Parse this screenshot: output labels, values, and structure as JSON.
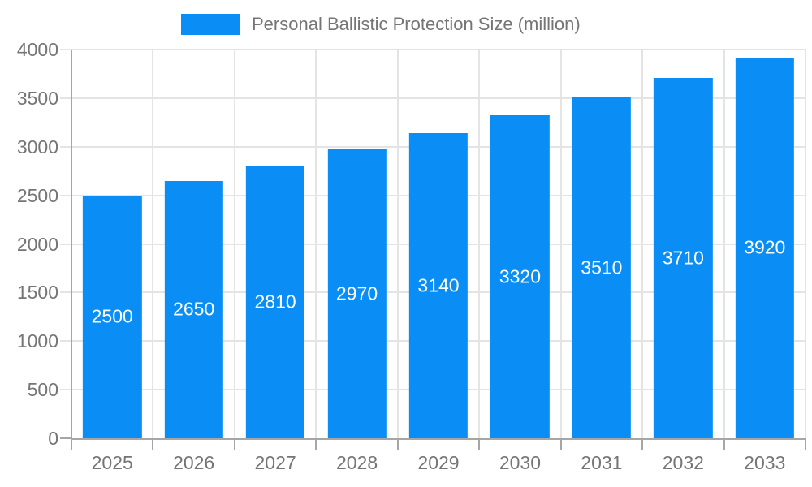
{
  "chart_data": {
    "type": "bar",
    "title": "Personal Ballistic Protection Size (million)",
    "categories": [
      "2025",
      "2026",
      "2027",
      "2028",
      "2029",
      "2030",
      "2031",
      "2032",
      "2033"
    ],
    "values": [
      2500,
      2650,
      2810,
      2970,
      3140,
      3320,
      3510,
      3710,
      3920
    ],
    "xlabel": "",
    "ylabel": "",
    "ylim": [
      0,
      4000
    ],
    "yticks": [
      0,
      500,
      1000,
      1500,
      2000,
      2500,
      3000,
      3500,
      4000
    ],
    "grid": true,
    "legend_position": "top-center",
    "value_label_position": "inside-center",
    "colors": {
      "bar": "#0a8ef5",
      "value_label": "#ffffff",
      "axis_text": "#757575",
      "axis_line": "#a6a6a6",
      "gridline": "#e4e4e4",
      "background": "#ffffff"
    }
  }
}
